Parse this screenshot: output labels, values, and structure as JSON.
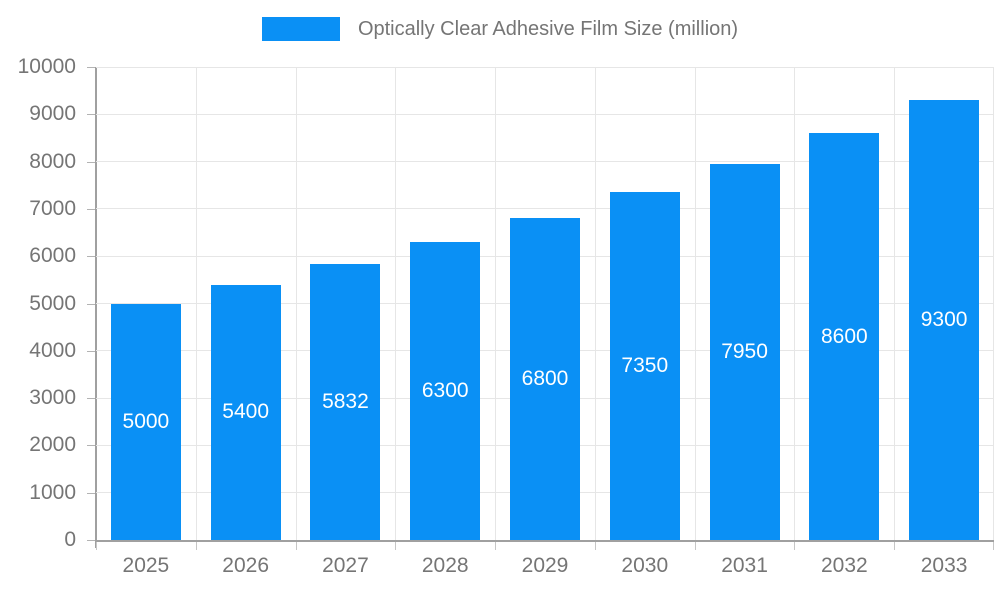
{
  "legend": {
    "label": "Optically Clear Adhesive Film Size (million)",
    "swatch_color": "#0a90f5"
  },
  "chart_data": {
    "type": "bar",
    "title": "Optically Clear Adhesive Film Size (million)",
    "categories": [
      "2025",
      "2026",
      "2027",
      "2028",
      "2029",
      "2030",
      "2031",
      "2032",
      "2033"
    ],
    "values": [
      5000,
      5400,
      5832,
      6300,
      6800,
      7350,
      7950,
      8600,
      9300
    ],
    "data_labels": [
      "5000",
      "5400",
      "5832",
      "6300",
      "6800",
      "7350",
      "7950",
      "8600",
      "9300"
    ],
    "xlabel": "",
    "ylabel": "",
    "ylim": [
      0,
      10000
    ],
    "yticks": [
      0,
      1000,
      2000,
      3000,
      4000,
      5000,
      6000,
      7000,
      8000,
      9000,
      10000
    ],
    "ytick_labels": [
      "0",
      "1000",
      "2000",
      "3000",
      "4000",
      "5000",
      "6000",
      "7000",
      "8000",
      "9000",
      "10000"
    ],
    "grid": true,
    "legend_position": "top",
    "bar_color": "#0a90f5",
    "bar_label_color": "#ffffff",
    "axis_text_color": "#757575",
    "grid_color": "#e6e6e6",
    "axis_line_color": "#a0a0a0"
  }
}
